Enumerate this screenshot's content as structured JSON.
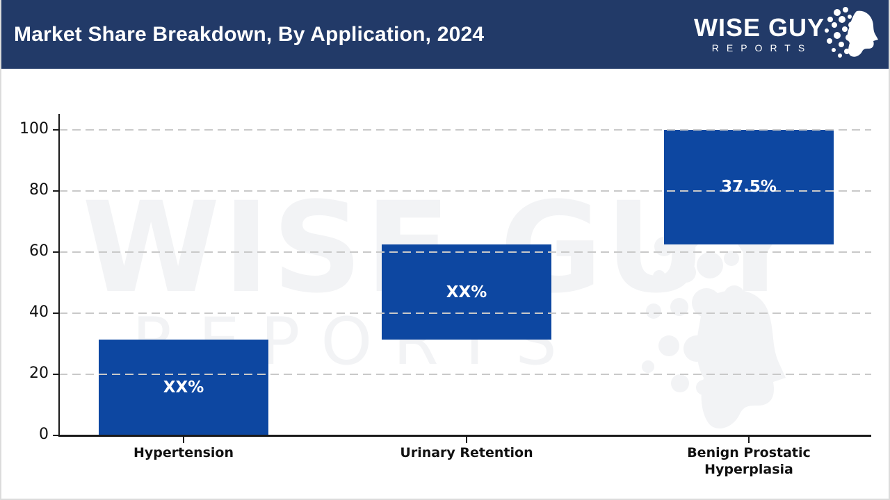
{
  "header": {
    "title": "Market Share Breakdown, By Application, 2024",
    "logo_primary": "WISE GUY",
    "logo_secondary": "REPORTS",
    "bg_color": "#223a68"
  },
  "watermark": {
    "line1": "WISE GUY",
    "line2": "REPORTS",
    "color": "#f2f3f5"
  },
  "chart_data": {
    "type": "bar",
    "subtype": "waterfall",
    "title": "Market Share Breakdown, By Application, 2024",
    "categories": [
      "Hypertension",
      "Urinary Retention",
      "Benign Prostatic Hyperplasia"
    ],
    "segments": [
      [
        0,
        31.25
      ],
      [
        31.25,
        62.5
      ],
      [
        62.5,
        100
      ]
    ],
    "bar_labels": [
      "XX%",
      "XX%",
      "37.5%"
    ],
    "bar_color": "#0d47a1",
    "yticks": [
      0,
      20,
      40,
      60,
      80,
      100
    ],
    "ylim": [
      0,
      105
    ],
    "xlabel": "",
    "ylabel": "",
    "grid": "horizontal-dashed",
    "legend": "none"
  }
}
